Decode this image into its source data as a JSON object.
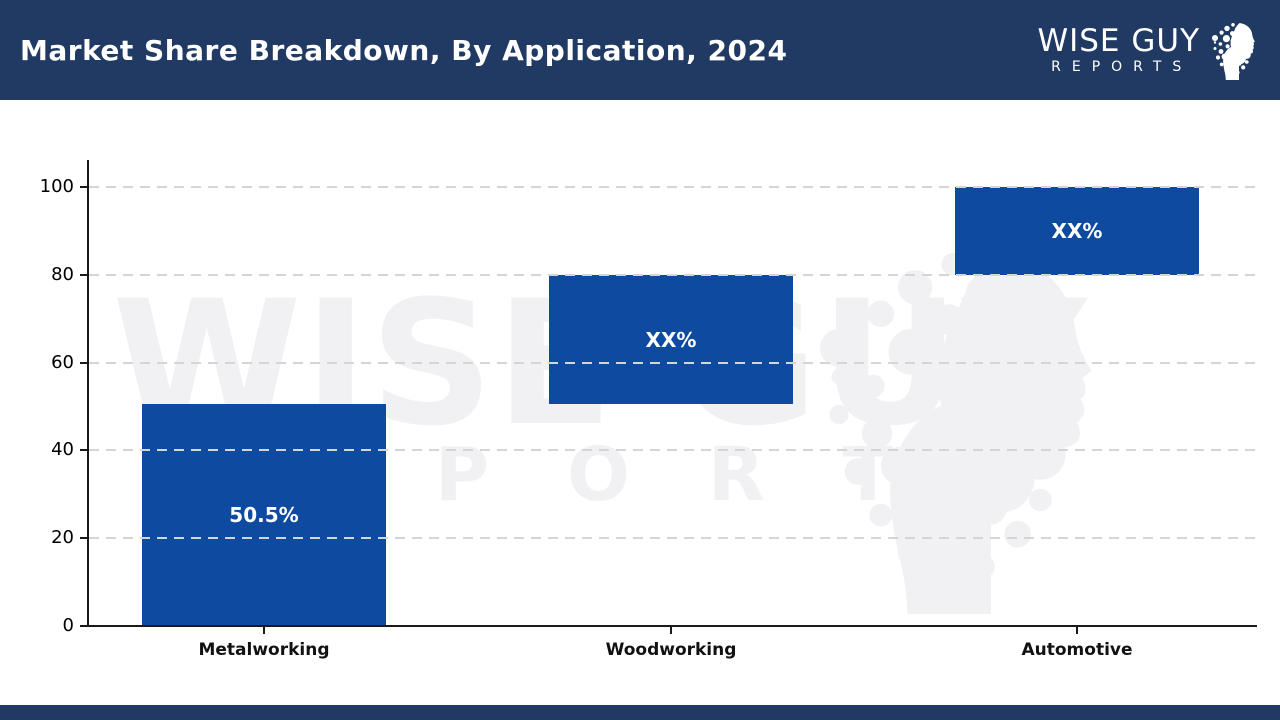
{
  "header": {
    "title": "Market Share Breakdown, By Application, 2024",
    "logo": {
      "primary": "WISE GUY",
      "secondary": "REPORTS"
    }
  },
  "watermark": {
    "primary": "WISE GUY",
    "secondary": "R E P O R T S"
  },
  "chart_data": {
    "type": "bar",
    "variant": "waterfall",
    "title": "Market Share Breakdown, By Application, 2024",
    "categories": [
      "Metalworking",
      "Woodworking",
      "Automotive"
    ],
    "segments": [
      {
        "category": "Metalworking",
        "start": 0,
        "end": 50.5,
        "label": "50.5%"
      },
      {
        "category": "Woodworking",
        "start": 50.5,
        "end": 80,
        "label": "XX%"
      },
      {
        "category": "Automotive",
        "start": 80,
        "end": 100,
        "label": "XX%"
      }
    ],
    "xlabel": "",
    "ylabel": "",
    "ylim": [
      0,
      100
    ],
    "yticks": [
      0,
      20,
      40,
      60,
      80,
      100
    ],
    "grid": {
      "horizontal": true,
      "style": "dashed",
      "above_bars": true
    },
    "legend": null,
    "bar_color": "#0d4aa0",
    "bar_label_color": "#ffffff"
  },
  "colors": {
    "header_bg": "#203a64",
    "footer_bg": "#203a64",
    "bar": "#0d4aa0",
    "gridline": "#d5d5d5",
    "watermark": "#f1f1f3",
    "axis": "#1a1a1a"
  }
}
